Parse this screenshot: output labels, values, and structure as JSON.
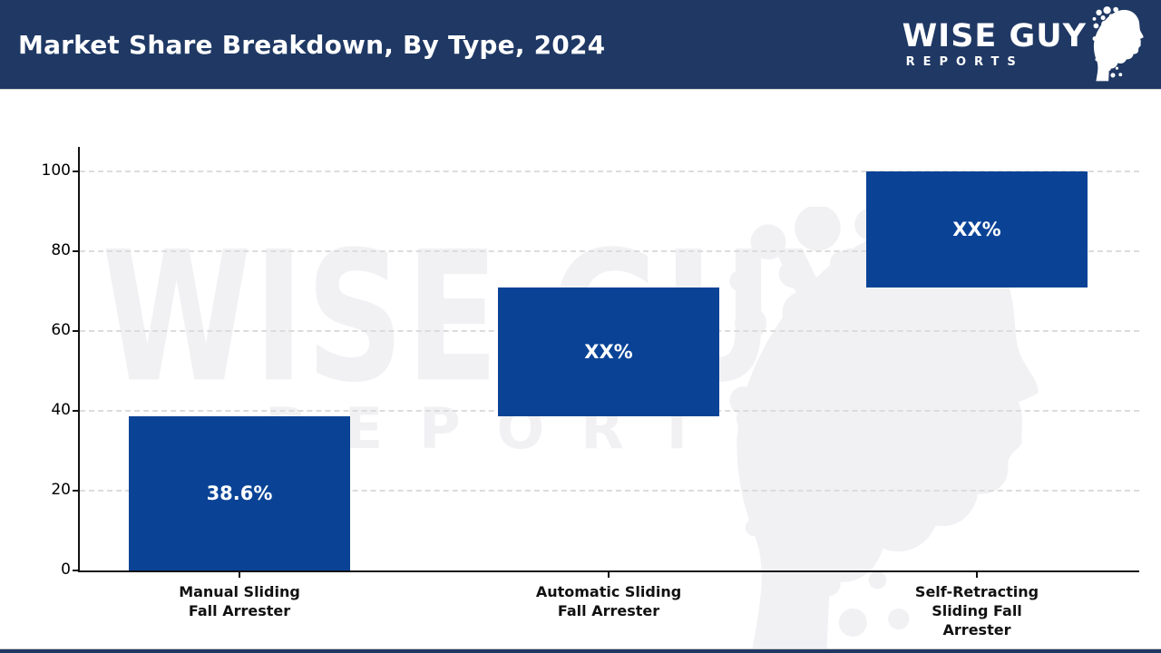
{
  "header": {
    "title": "Market Share Breakdown, By Type, 2024",
    "logo": {
      "wordmark": "WISE GUY",
      "subtext": "REPORTS"
    }
  },
  "watermark": {
    "line1": "WISE GUY",
    "line2": "REPORTS"
  },
  "colors": {
    "header_bg": "#1F3864",
    "bar_fill": "#0A4396",
    "bar_label": "#FFFFFF",
    "grid": "#DCDCDC",
    "axis": "#111111",
    "watermark": "#F1F1F4",
    "bottom_bar": "#1F3864"
  },
  "chart_data": {
    "type": "bar",
    "subtype": "waterfall-floating-bars",
    "title": "Market Share Breakdown, By Type, 2024",
    "categories": [
      "Manual Sliding\nFall Arrester",
      "Automatic Sliding\nFall Arrester",
      "Self-Retracting\nSliding Fall\nArrester"
    ],
    "segments": [
      {
        "category": "Manual Sliding Fall Arrester",
        "start": 0,
        "end": 38.6,
        "label": "38.6%"
      },
      {
        "category": "Automatic Sliding Fall Arrester",
        "start": 38.6,
        "end": 71,
        "label": "XX%"
      },
      {
        "category": "Self-Retracting Sliding Fall Arrester",
        "start": 71,
        "end": 100,
        "label": "XX%"
      }
    ],
    "yticks": [
      0,
      20,
      40,
      60,
      80,
      100
    ],
    "ylim": [
      0,
      106
    ],
    "xlabel": "",
    "ylabel": "",
    "grid": "horizontal-dashed",
    "legend": null
  }
}
